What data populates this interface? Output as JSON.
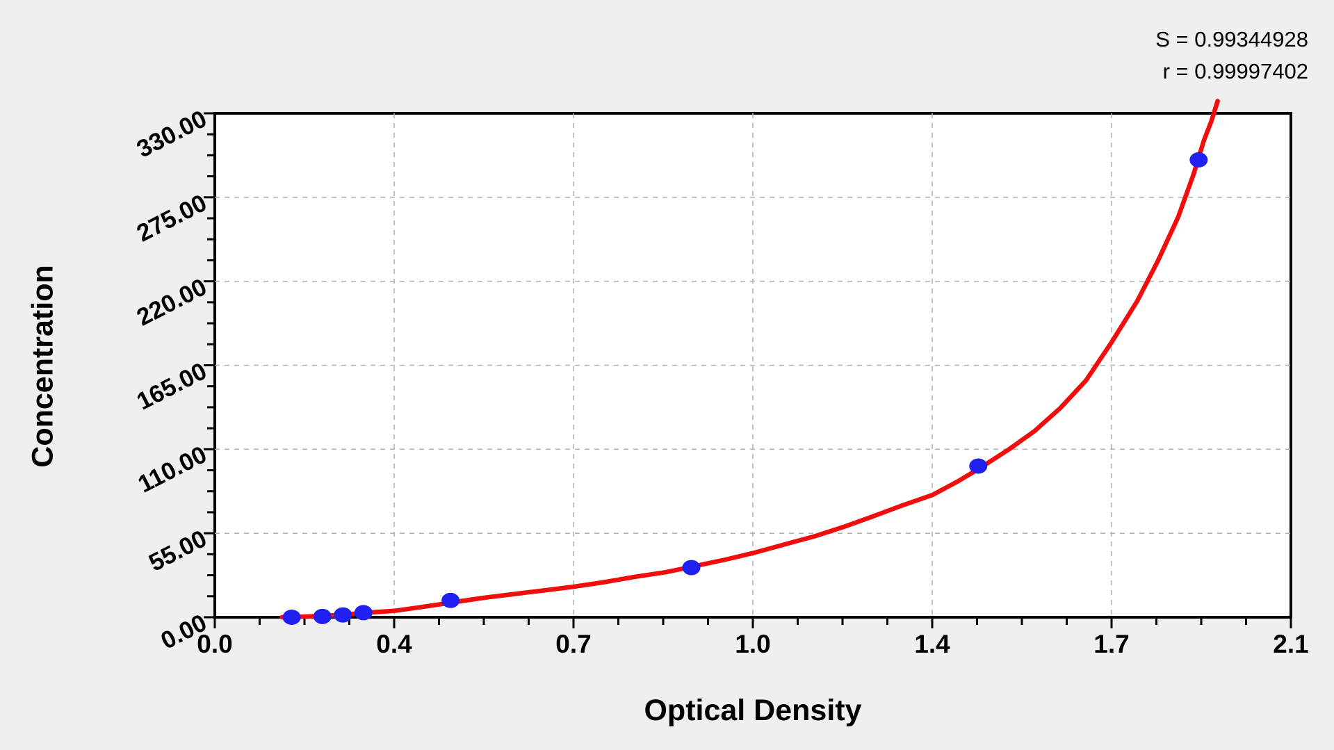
{
  "figure": {
    "background": "#efefef",
    "plot_background": "#ffffff",
    "frame_color": "#000000",
    "grid_color": "#b3b3b3",
    "tick_color": "#000000"
  },
  "stats": {
    "line1": "S = 0.99344928",
    "line2": "r = 0.99997402"
  },
  "chart_data": {
    "type": "scatter",
    "title": "",
    "xlabel": "Optical Density",
    "ylabel": "Concentration",
    "xlim": [
      0,
      2.1
    ],
    "ylim": [
      0,
      330
    ],
    "grid": {
      "on": true,
      "style": "dashed",
      "at": "major-ticks"
    },
    "legend_position": "none",
    "x_ticks": {
      "values": [
        0,
        0.35,
        0.7,
        1.05,
        1.4,
        1.75,
        2.1
      ],
      "labels": [
        "0.0",
        "0.4",
        "0.7",
        "1.0",
        "1.4",
        "1.7",
        "2.1"
      ],
      "minor_divisions": 4
    },
    "y_ticks": {
      "values": [
        0,
        55,
        110,
        165,
        220,
        275,
        330
      ],
      "labels": [
        "0.00",
        "55.00",
        "110.00",
        "165.00",
        "220.00",
        "275.00",
        "330.00"
      ],
      "minor_divisions": 4
    },
    "annotations": [
      "S = 0.99344928",
      "r = 0.99997402"
    ],
    "series": [
      {
        "name": "standard-points",
        "type": "scatter",
        "color": "#2020f0",
        "points": [
          {
            "x": 0.15,
            "y": 0.0
          },
          {
            "x": 0.21,
            "y": 0.5
          },
          {
            "x": 0.25,
            "y": 1.5
          },
          {
            "x": 0.29,
            "y": 3.0
          },
          {
            "x": 0.46,
            "y": 11.0
          },
          {
            "x": 0.93,
            "y": 32.5
          },
          {
            "x": 1.49,
            "y": 99.0
          },
          {
            "x": 1.92,
            "y": 299.5
          }
        ]
      },
      {
        "name": "fitted-curve",
        "type": "line",
        "color": "#f20d0d",
        "points": [
          [
            0.131,
            0.0
          ],
          [
            0.15,
            0.2
          ],
          [
            0.21,
            0.8
          ],
          [
            0.25,
            1.6
          ],
          [
            0.29,
            2.8
          ],
          [
            0.35,
            4.2
          ],
          [
            0.4,
            6.5
          ],
          [
            0.46,
            9.5
          ],
          [
            0.52,
            12.5
          ],
          [
            0.58,
            15.0
          ],
          [
            0.64,
            17.5
          ],
          [
            0.7,
            20.0
          ],
          [
            0.76,
            23.0
          ],
          [
            0.82,
            26.5
          ],
          [
            0.88,
            29.5
          ],
          [
            0.93,
            33.0
          ],
          [
            1.0,
            38.0
          ],
          [
            1.05,
            42.0
          ],
          [
            1.11,
            47.5
          ],
          [
            1.17,
            53.0
          ],
          [
            1.23,
            59.5
          ],
          [
            1.28,
            65.5
          ],
          [
            1.34,
            73.0
          ],
          [
            1.4,
            80.0
          ],
          [
            1.45,
            89.0
          ],
          [
            1.49,
            97.0
          ],
          [
            1.55,
            110.0
          ],
          [
            1.6,
            122.0
          ],
          [
            1.65,
            137.0
          ],
          [
            1.7,
            155.0
          ],
          [
            1.75,
            180.0
          ],
          [
            1.8,
            207.0
          ],
          [
            1.84,
            233.0
          ],
          [
            1.88,
            262.0
          ],
          [
            1.91,
            290.0
          ],
          [
            1.93,
            312.0
          ],
          [
            1.945,
            325.0
          ],
          [
            1.957,
            338.0
          ]
        ]
      }
    ]
  }
}
